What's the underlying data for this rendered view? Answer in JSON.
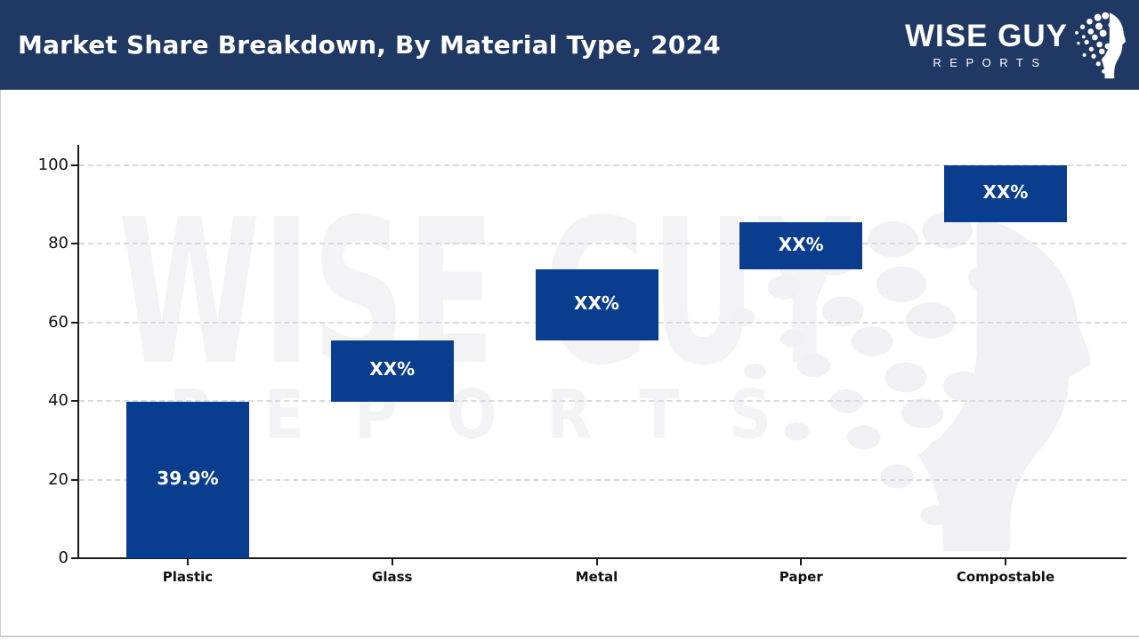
{
  "header": {
    "title": "Market Share Breakdown, By Material Type, 2024",
    "bg_color": "#203864",
    "logo": {
      "primary": "WISE GUY",
      "secondary": "REPORTS"
    }
  },
  "watermark": {
    "primary": "WISE GUY",
    "secondary": "REPORTS"
  },
  "chart_data": {
    "type": "bar",
    "subtype": "waterfall",
    "title": "Market Share Breakdown, By Material Type, 2024",
    "categories": [
      "Plastic",
      "Glass",
      "Metal",
      "Paper",
      "Compostable"
    ],
    "series": [
      {
        "name": "Market share (%)",
        "segments": [
          {
            "category": "Plastic",
            "start": 0,
            "end": 39.9,
            "label": "39.9%"
          },
          {
            "category": "Glass",
            "start": 39.9,
            "end": 55.5,
            "label": "XX%"
          },
          {
            "category": "Metal",
            "start": 55.5,
            "end": 73.5,
            "label": "XX%"
          },
          {
            "category": "Paper",
            "start": 73.5,
            "end": 85.5,
            "label": "XX%"
          },
          {
            "category": "Compostable",
            "start": 85.5,
            "end": 100,
            "label": "XX%"
          }
        ]
      }
    ],
    "yticks": [
      0,
      20,
      40,
      60,
      80,
      100
    ],
    "ylim": [
      0,
      107
    ],
    "xlabel": "",
    "ylabel": "",
    "legend": "none",
    "grid": "horizontal-dashed",
    "bar_color": "#0b3d8f",
    "bar_label_color": "#ffffff",
    "gridline_color": "#d9d9d9",
    "axis_color": "#1a1a1a"
  }
}
